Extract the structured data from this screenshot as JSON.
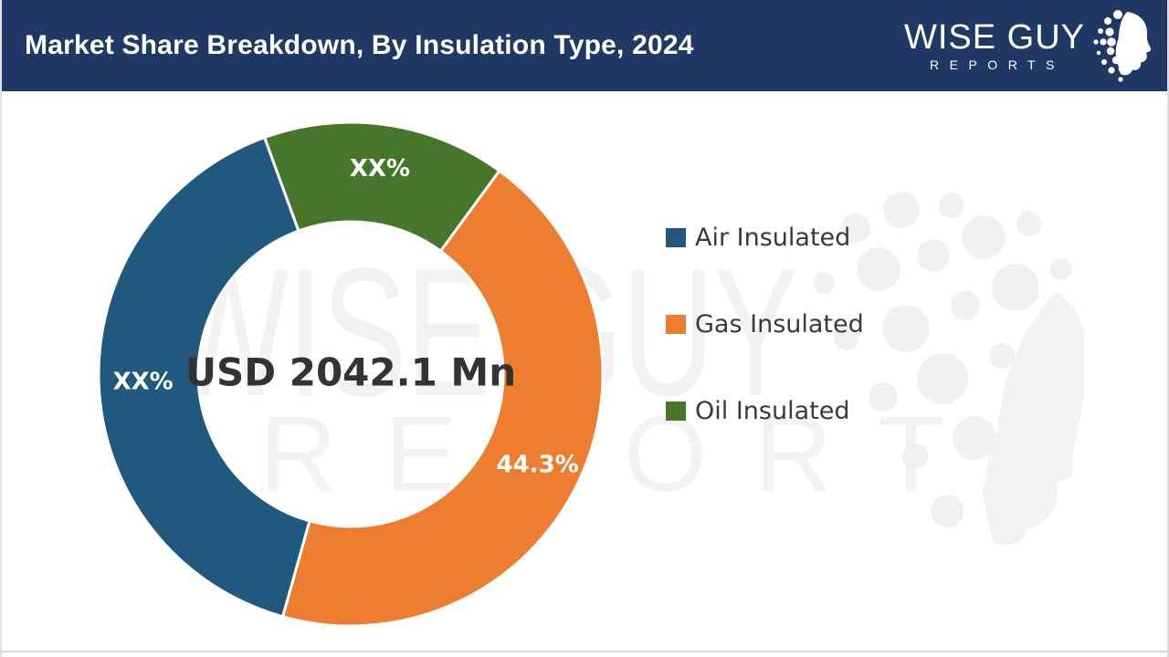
{
  "header": {
    "title": "Market Share Breakdown, By Insulation Type, 2024",
    "bg_color": "#1f3864",
    "logo": {
      "line1": "WISE GUY",
      "line2": "REPORTS"
    }
  },
  "watermark": {
    "line1": "WISE GUY",
    "line2": "REPORTS"
  },
  "chart_data": {
    "type": "pie",
    "subtype": "donut",
    "title": "Market Share Breakdown, By Insulation Type, 2024",
    "center_label": "USD 2042.1 Mn",
    "start_angle_deg_from_top": -20,
    "outer_radius_px": 276,
    "inner_radius_px": 167,
    "slices": [
      {
        "label": "Oil Insulated",
        "value": 15.6,
        "display": "XX%",
        "color": "#46762a"
      },
      {
        "label": "Gas Insulated",
        "value": 44.3,
        "display": "44.3%",
        "color": "#ed7d31"
      },
      {
        "label": "Air Insulated",
        "value": 40.1,
        "display": "XX%",
        "color": "#20587e"
      }
    ],
    "legend": [
      {
        "label": "Air Insulated",
        "color": "#20587e"
      },
      {
        "label": "Gas Insulated",
        "color": "#ed7d31"
      },
      {
        "label": "Oil Insulated",
        "color": "#46762a"
      }
    ],
    "legend_position": "right"
  }
}
